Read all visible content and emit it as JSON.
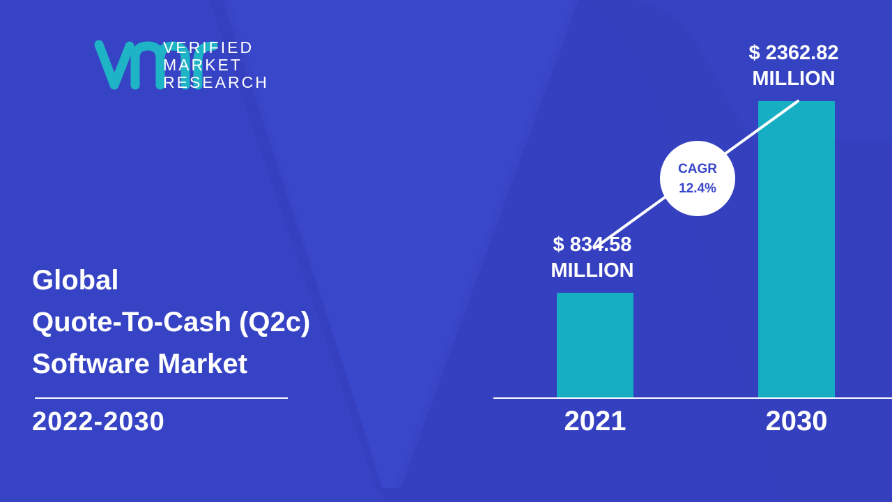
{
  "brand": {
    "line1": "VERIFIED",
    "line2": "MARKET",
    "line3": "RESEARCH",
    "logo_color": "#1fb3c6"
  },
  "title": {
    "line1": "Global",
    "line2": "Quote-To-Cash (Q2c)",
    "line3": "Software Market"
  },
  "period": "2022-2030",
  "colors": {
    "background": "#3845c8",
    "bar": "#16aec2",
    "text": "#ffffff"
  },
  "chart_data": {
    "type": "bar",
    "categories": [
      "2021",
      "2030"
    ],
    "values": [
      834.58,
      2362.82
    ],
    "value_labels": [
      [
        "$ 834.58",
        "MILLION"
      ],
      [
        "$ 2362.82",
        "MILLION"
      ]
    ],
    "unit": "MILLION",
    "annotation": {
      "label": "CAGR",
      "value": "12.4%"
    }
  }
}
